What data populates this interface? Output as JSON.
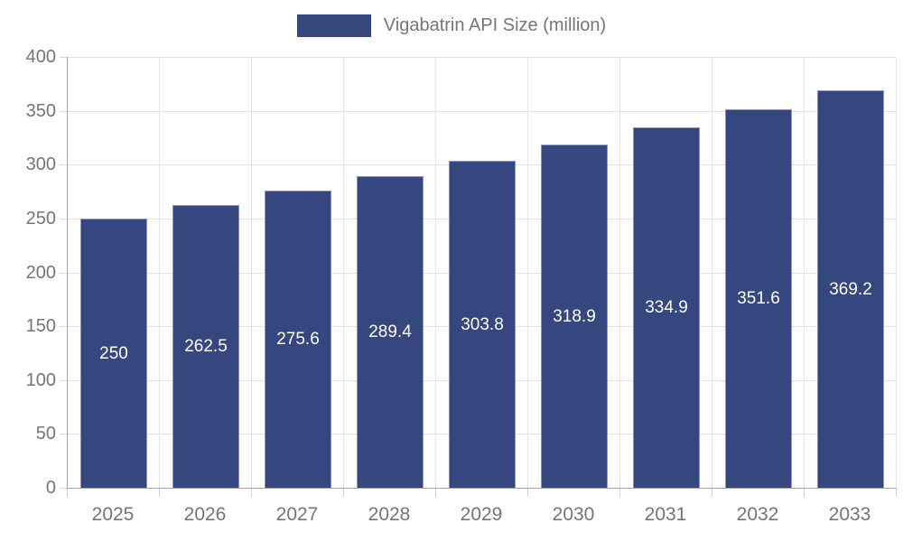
{
  "legend": {
    "label": "Vigabatrin API Size (million)"
  },
  "chart_data": {
    "type": "bar",
    "title": "Vigabatrin API Size (million)",
    "categories": [
      "2025",
      "2026",
      "2027",
      "2028",
      "2029",
      "2030",
      "2031",
      "2032",
      "2033"
    ],
    "series": [
      {
        "name": "Vigabatrin API Size (million)",
        "values": [
          250,
          262.5,
          275.6,
          289.4,
          303.8,
          318.9,
          334.9,
          351.6,
          369.2
        ]
      }
    ],
    "value_labels": [
      "250",
      "262.5",
      "275.6",
      "289.4",
      "303.8",
      "318.9",
      "334.9",
      "351.6",
      "369.2"
    ],
    "xlabel": "",
    "ylabel": "",
    "ylim": [
      0,
      400
    ],
    "yticks": [
      0,
      50,
      100,
      150,
      200,
      250,
      300,
      350,
      400
    ],
    "grid": true,
    "legend_position": "top-center",
    "colors": {
      "bar": "#35477e",
      "bar_border": "#8a93bf",
      "grid": "#e2e2e2",
      "axis": "#a0a0a0",
      "tick_label": "#757575",
      "value_label": "#ffffff",
      "legend_text": "#75757a"
    }
  }
}
